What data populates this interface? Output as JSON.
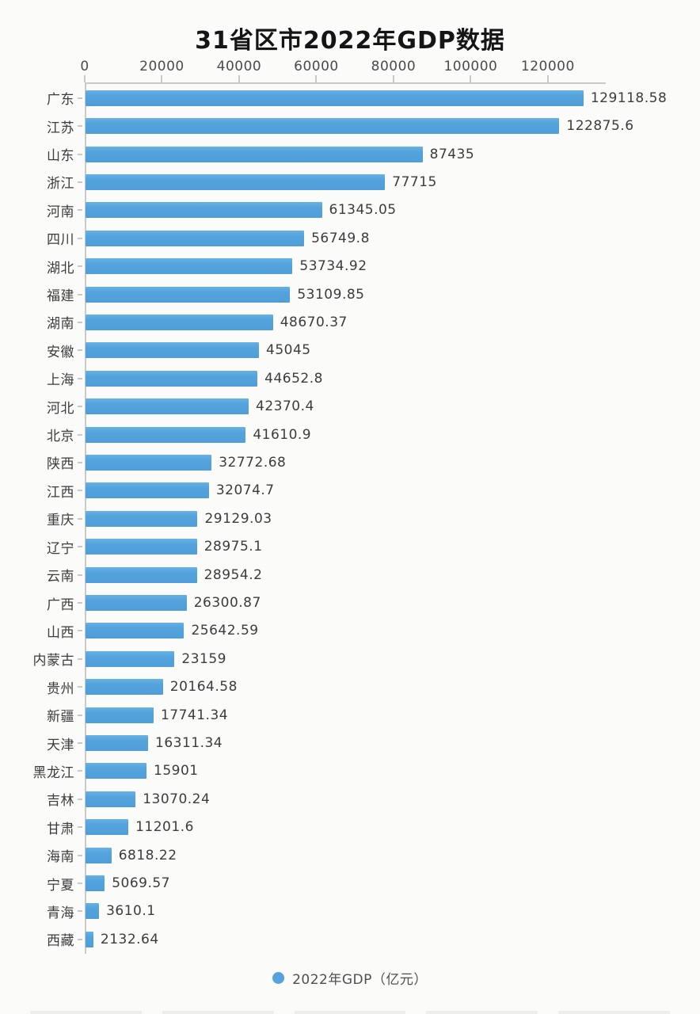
{
  "chart_data": {
    "type": "bar",
    "orientation": "horizontal",
    "title": "31省区市2022年GDP数据",
    "series_name": "2022年GDP（亿元）",
    "categories": [
      "广东",
      "江苏",
      "山东",
      "浙江",
      "河南",
      "四川",
      "湖北",
      "福建",
      "湖南",
      "安徽",
      "上海",
      "河北",
      "北京",
      "陕西",
      "江西",
      "重庆",
      "辽宁",
      "云南",
      "广西",
      "山西",
      "内蒙古",
      "贵州",
      "新疆",
      "天津",
      "黑龙江",
      "吉林",
      "甘肃",
      "海南",
      "宁夏",
      "青海",
      "西藏"
    ],
    "values": [
      129118.58,
      122875.6,
      87435,
      77715,
      61345.05,
      56749.8,
      53734.92,
      53109.85,
      48670.37,
      45045,
      44652.8,
      42370.4,
      41610.9,
      32772.68,
      32074.7,
      29129.03,
      28975.1,
      28954.2,
      26300.87,
      25642.59,
      23159,
      20164.58,
      17741.34,
      16311.34,
      15901,
      13070.24,
      11201.6,
      6818.22,
      5069.57,
      3610.1,
      2132.64
    ],
    "x_ticks": [
      0,
      20000,
      40000,
      60000,
      80000,
      100000,
      120000
    ],
    "xlim": [
      0,
      135000
    ],
    "grid": false,
    "axis_position": "top",
    "legend_position": "bottom",
    "bar_color": "#54a3dc"
  }
}
